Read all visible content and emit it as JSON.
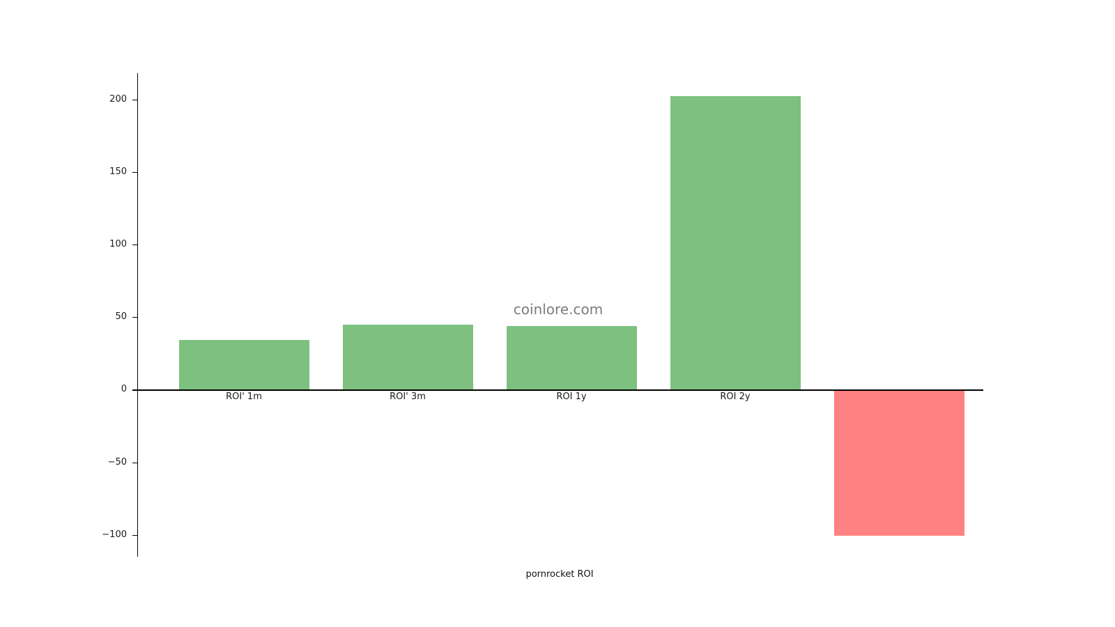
{
  "page": {
    "background": "#ffffff"
  },
  "watermark": {
    "text": "coinlore.com",
    "color": "#7c7c7c"
  },
  "footer": {
    "title": "pornrocket ROI"
  },
  "chart_data": {
    "type": "bar",
    "title": "pornrocket ROI",
    "categories": [
      "ROI' 1m",
      "ROI' 3m",
      "ROI 1y",
      "ROI 2y",
      ""
    ],
    "values": [
      34,
      45,
      44,
      202,
      -100
    ],
    "bar_colors": [
      "#7dc080",
      "#7dc080",
      "#7dc080",
      "#7dc080",
      "#ff8181"
    ],
    "positive_color": "#7dc080",
    "negative_color": "#ff8181",
    "yticks": [
      200,
      150,
      100,
      50,
      0,
      -50,
      -100
    ],
    "ylim": [
      -115,
      218
    ],
    "xlabel": "",
    "ylabel": "",
    "grid": false,
    "legend": null,
    "axis_color": "#000000",
    "tick_label_color": "#1a1a1a",
    "watermark": "coinlore.com"
  }
}
